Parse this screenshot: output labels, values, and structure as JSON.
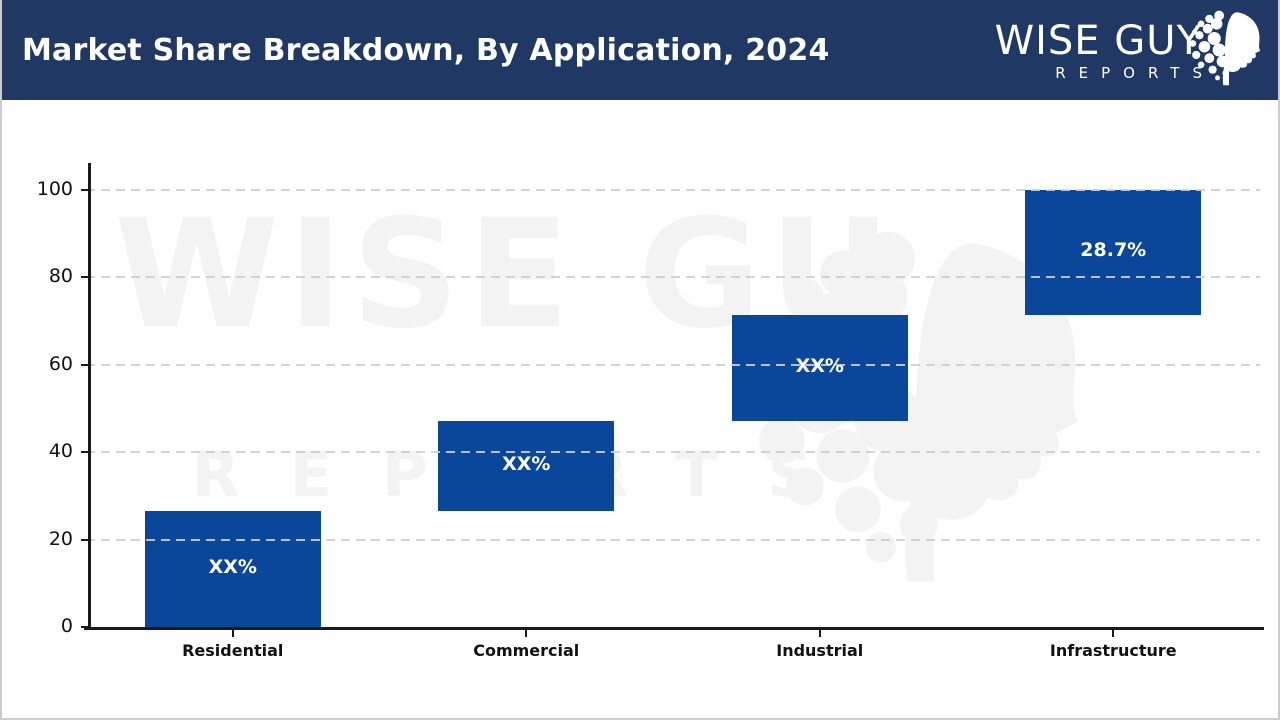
{
  "header": {
    "title": "Market Share Breakdown, By Application, 2024",
    "logo": {
      "line1": "WISE GUY",
      "line2": "REPORTS"
    }
  },
  "watermark": {
    "line1": "WISE GU",
    "line2": "REPORTS"
  },
  "colors": {
    "header_bg": "#203864",
    "bar": "#0a4699",
    "grid": "#cecece",
    "axis": "#1a1a1a",
    "bar_label": "#ffffff",
    "watermark": "#f3f3f3"
  },
  "chart_data": {
    "type": "bar",
    "subtype": "waterfall",
    "title": "Market Share Breakdown, By Application, 2024",
    "categories": [
      "Residential",
      "Commercial",
      "Industrial",
      "Infrastructure"
    ],
    "segments": [
      {
        "category": "Residential",
        "from": 0,
        "to": 26.6,
        "label": "XX%"
      },
      {
        "category": "Commercial",
        "from": 26.6,
        "to": 47.2,
        "label": "XX%"
      },
      {
        "category": "Industrial",
        "from": 47.2,
        "to": 71.3,
        "label": "XX%"
      },
      {
        "category": "Infrastructure",
        "from": 71.3,
        "to": 100,
        "label": "28.7%"
      }
    ],
    "xlabel": "",
    "ylabel": "",
    "ylim": [
      0,
      100
    ],
    "yticks": [
      0,
      20,
      40,
      60,
      80,
      100
    ],
    "grid": "horizontal-dashed",
    "legend": "none"
  }
}
